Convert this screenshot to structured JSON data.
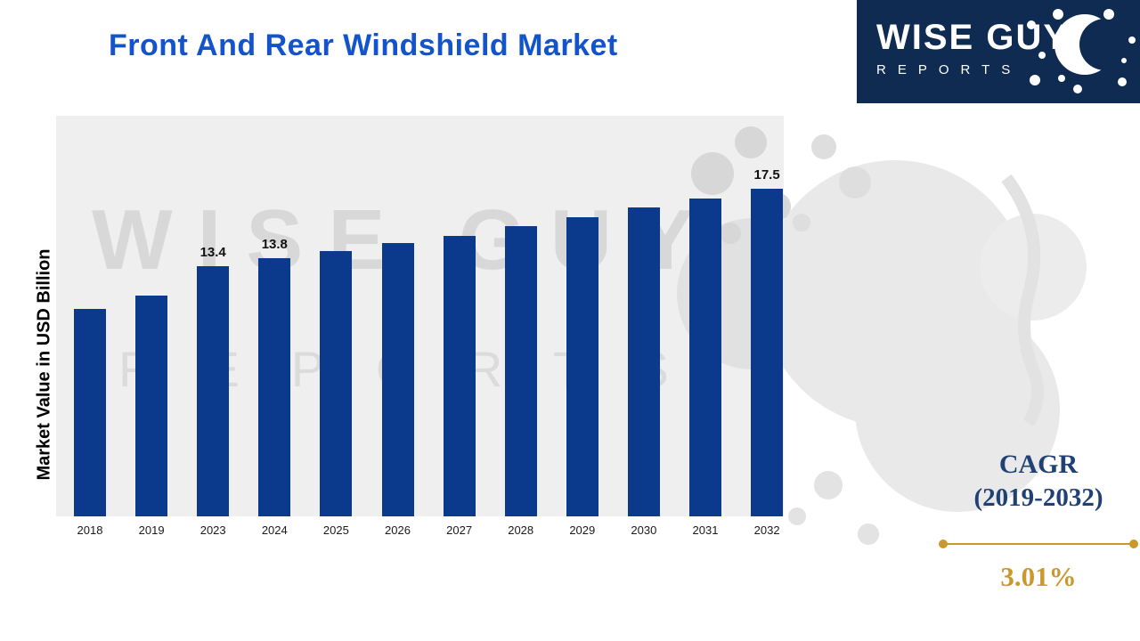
{
  "title": "Front And Rear Windshield Market",
  "logo": {
    "line1": "WISE GUY",
    "line2": "REPORTS"
  },
  "watermark": {
    "line1": "WISE GUY",
    "line2": "REPORTS"
  },
  "cagr": {
    "label": "CAGR",
    "range": "(2019-2032)",
    "value": "3.01%"
  },
  "colors": {
    "title": "#1353cb",
    "bar": "#0b3a8c",
    "navy": "#0f2b52",
    "cagr_text": "#1f4176",
    "gold": "#c9992f",
    "plot_bg": "#efefef"
  },
  "chart_data": {
    "type": "bar",
    "title": "Front And Rear Windshield Market",
    "ylabel": "Market Value in USD Billion",
    "xlabel": "",
    "categories": [
      "2018",
      "2019",
      "2023",
      "2024",
      "2025",
      "2026",
      "2027",
      "2028",
      "2029",
      "2030",
      "2031",
      "2032"
    ],
    "values": [
      11.1,
      11.8,
      13.4,
      13.8,
      14.2,
      14.6,
      15.0,
      15.5,
      16.0,
      16.5,
      17.0,
      17.5
    ],
    "labels": [
      "",
      "",
      "13.4",
      "13.8",
      "",
      "",
      "",
      "",
      "",
      "",
      "",
      "17.5"
    ],
    "bar_color": "#0b3a8c",
    "ylim": [
      0,
      18.5
    ],
    "grid": false,
    "legend": "none"
  }
}
